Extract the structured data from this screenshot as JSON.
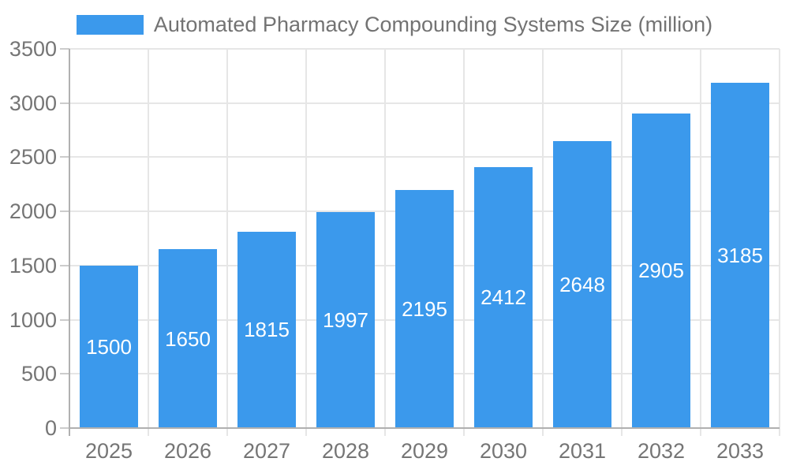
{
  "chart_data": {
    "type": "bar",
    "title": "Automated Pharmacy Compounding Systems Size (million)",
    "categories": [
      "2025",
      "2026",
      "2027",
      "2028",
      "2029",
      "2030",
      "2031",
      "2032",
      "2033"
    ],
    "series": [
      {
        "name": "Automated Pharmacy Compounding Systems Size (million)",
        "values": [
          1500,
          1650,
          1815,
          1997,
          2195,
          2412,
          2648,
          2905,
          3185
        ]
      }
    ],
    "value_labels": [
      "1500",
      "1650",
      "1815",
      "1997",
      "2195",
      "2412",
      "2648",
      "2905",
      "3185"
    ],
    "ylim": [
      0,
      3500
    ],
    "yticks": [
      0,
      500,
      1000,
      1500,
      2000,
      2500,
      3000,
      3500
    ],
    "ytick_labels": [
      "0",
      "500",
      "1000",
      "1500",
      "2000",
      "2500",
      "3000",
      "3500"
    ],
    "grid": true,
    "legend_position": "top",
    "colors": {
      "bar": "#3b99ec",
      "value_label": "#ffffff",
      "grid": "#e6e6e6",
      "axis": "#b0b0b0",
      "minor_tick": "#cccccc",
      "tick_label": "#757575",
      "legend_text": "#737373"
    }
  }
}
